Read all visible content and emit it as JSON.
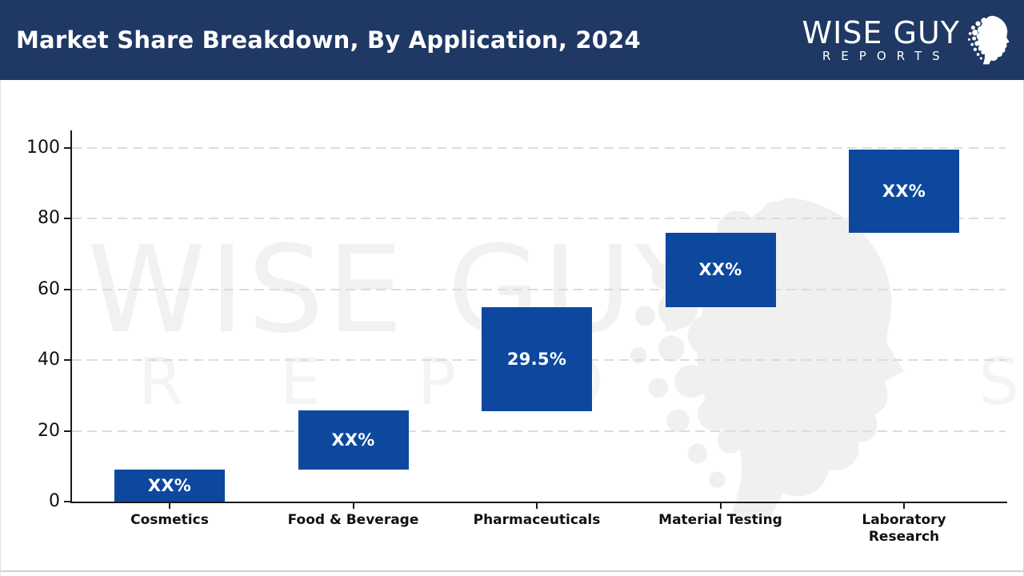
{
  "header": {
    "title": "Market Share Breakdown, By Application, 2024",
    "logo": {
      "line1": "WISE GUY",
      "line2": "REPORTS",
      "face_icon": "dotted-head-profile"
    }
  },
  "watermark": {
    "line1": "WISE GUY",
    "line2": "R E P O R T S",
    "face_icon": "dotted-head-profile"
  },
  "colors": {
    "header_bg": "#1f3864",
    "bar_fill": "#0d489e",
    "bar_label_text": "#ffffff",
    "grid": "#dcdcdc",
    "axis": "#1a1a1a",
    "watermark": "#f1f1f1"
  },
  "chart_data": {
    "type": "bar",
    "subtype": "waterfall",
    "title": "Market Share Breakdown, By Application, 2024",
    "categories": [
      "Cosmetics",
      "Food & Beverage",
      "Pharmaceuticals",
      "Material Testing",
      "Laboratory\nResearch"
    ],
    "bars": [
      {
        "category": "Cosmetics",
        "start": 0,
        "end": 9,
        "label": "XX%"
      },
      {
        "category": "Food & Beverage",
        "start": 9,
        "end": 25.8,
        "label": "XX%"
      },
      {
        "category": "Pharmaceuticals",
        "start": 25.5,
        "end": 55,
        "label": "29.5%"
      },
      {
        "category": "Material Testing",
        "start": 55,
        "end": 76,
        "label": "XX%"
      },
      {
        "category": "Laboratory Research",
        "start": 76,
        "end": 99.5,
        "label": "XX%"
      }
    ],
    "y_ticks": [
      0,
      20,
      40,
      60,
      80,
      100
    ],
    "ylim": [
      0,
      104
    ],
    "xlabel": "",
    "ylabel": "",
    "grid": "horizontal-dashed",
    "legend": "none"
  }
}
